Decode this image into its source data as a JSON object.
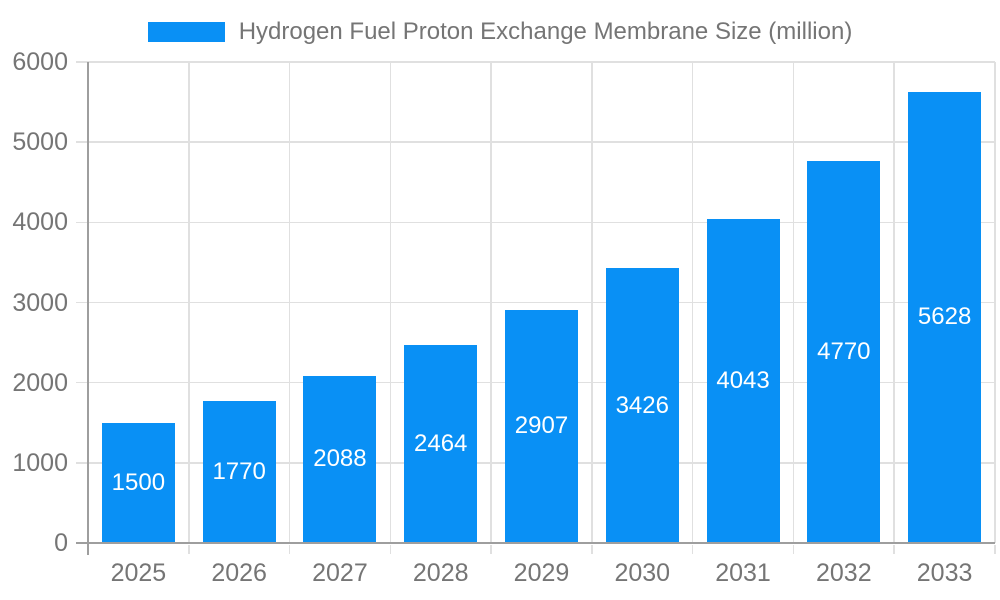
{
  "chart_data": {
    "type": "bar",
    "title": "Hydrogen Fuel Proton Exchange Membrane Size (million)",
    "categories": [
      "2025",
      "2026",
      "2027",
      "2028",
      "2029",
      "2030",
      "2031",
      "2032",
      "2033"
    ],
    "values": [
      1500,
      1770,
      2088,
      2464,
      2907,
      3426,
      4043,
      4770,
      5628
    ],
    "xlabel": "",
    "ylabel": "",
    "ylim": [
      0,
      6000
    ],
    "yticks": [
      0,
      1000,
      2000,
      3000,
      4000,
      5000,
      6000
    ],
    "grid": true,
    "legend_position": "top-center",
    "bar_value_labels": "inside-center",
    "colors": {
      "bar": "#0990F5",
      "bar_label": "#FFFFFF",
      "axis_line": "#9E9E9E",
      "gridline": "#E0E0E0",
      "tick_label": "#757575",
      "legend_text": "#757575",
      "background": "#FFFFFF"
    }
  }
}
